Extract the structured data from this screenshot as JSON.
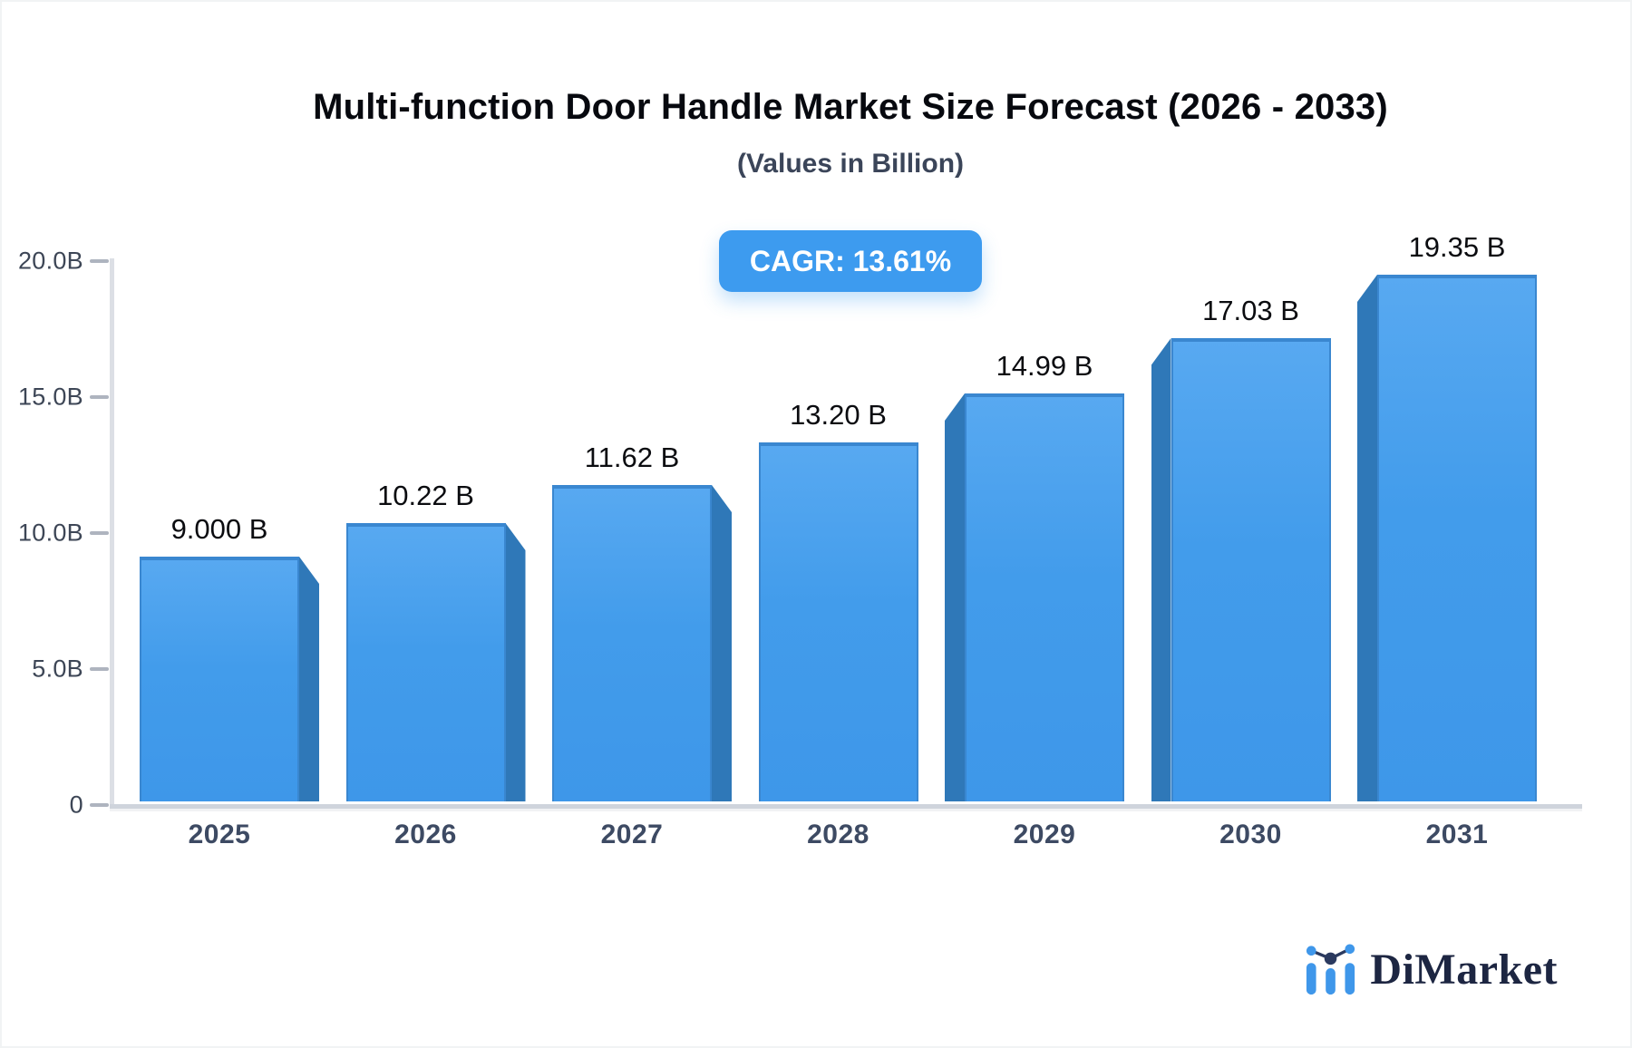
{
  "header": {
    "title": "Multi-function Door Handle Market Size Forecast (2026 - 2033)",
    "subtitle": "(Values in Billion)",
    "cagr_label": "CAGR: 13.61%",
    "badge_bg": "#3d9bef"
  },
  "chart_data": {
    "type": "bar",
    "title": "Multi-function Door Handle Market Size Forecast (2026 - 2033)",
    "subtitle": "(Values in Billion)",
    "categories": [
      "2025",
      "2026",
      "2027",
      "2028",
      "2029",
      "2030",
      "2031"
    ],
    "values": [
      9.0,
      10.22,
      11.62,
      13.2,
      14.99,
      17.03,
      19.35
    ],
    "bar_labels": [
      "9.000 B",
      "10.22 B",
      "11.62 B",
      "13.20 B",
      "14.99 B",
      "17.03 B",
      "19.35 B"
    ],
    "annotation": "CAGR: 13.61%",
    "ylim": [
      0,
      20
    ],
    "y_ticks": [
      {
        "value": 20,
        "label": "20.0B"
      },
      {
        "value": 15,
        "label": "15.0B"
      },
      {
        "value": 10,
        "label": "10.0B"
      },
      {
        "value": 5,
        "label": "5.0B"
      },
      {
        "value": 0,
        "label": "0"
      }
    ],
    "grid": false,
    "legend": null,
    "style": "3d-extruded-bars",
    "colors": {
      "bar_top": "#58a9f1",
      "bar_main": "#429ceb",
      "bar_bottom": "#3e97e9",
      "bar_border": "#3a87d0",
      "bar_side": "#2f78b8",
      "axis_line": "#d6dae1",
      "tick_text": "#3d4656",
      "category_text": "#3d4a63",
      "value_text": "#0b0c10"
    }
  },
  "footer": {
    "brand": "DiMarket",
    "logo_icon": "mini-bar-chart-icon",
    "brand_color": "#1d2642",
    "logo_blue": "#3f97ea",
    "logo_navy": "#2b3a5f"
  }
}
